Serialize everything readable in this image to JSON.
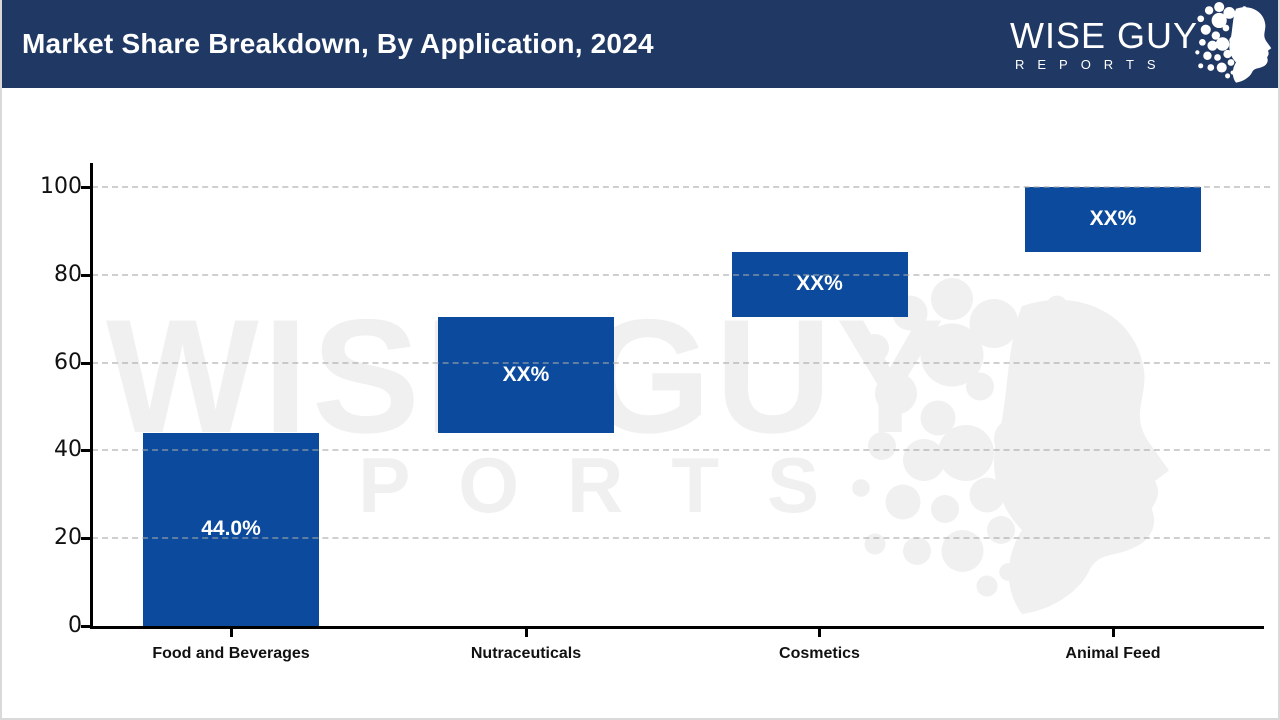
{
  "header": {
    "title": "Market Share Breakdown, By Application, 2024",
    "logo": {
      "name": "WISE GUY",
      "subtitle": "REPORTS"
    }
  },
  "watermark": {
    "line1": "WISE GUY",
    "line2": "REPORTS"
  },
  "colors": {
    "header_bg": "#203864",
    "bar": "#0b4a9c",
    "bar_label_text": "#ffffff",
    "axis": "#000000",
    "gridline": "#a7a7a7",
    "watermark": "#f0f0f0"
  },
  "chart_data": {
    "type": "bar",
    "subtype": "floating-waterfall",
    "title": "Market Share Breakdown, By Application, 2024",
    "categories": [
      "Food and Beverages",
      "Nutraceuticals",
      "Cosmetics",
      "Animal Feed"
    ],
    "segments": [
      {
        "category": "Food and Beverages",
        "start": 0,
        "end": 44.0,
        "value": 44.0,
        "label": "44.0%"
      },
      {
        "category": "Nutraceuticals",
        "start": 44.0,
        "end": 70.5,
        "value": 26.5,
        "label": "XX%"
      },
      {
        "category": "Cosmetics",
        "start": 70.5,
        "end": 85.2,
        "value": 14.7,
        "label": "XX%"
      },
      {
        "category": "Animal Feed",
        "start": 85.2,
        "end": 100.0,
        "value": 14.8,
        "label": "XX%"
      }
    ],
    "xlabel": "",
    "ylabel": "",
    "y_ticks": [
      0,
      20,
      40,
      60,
      80,
      100
    ],
    "ylim": [
      0,
      105
    ],
    "grid": "horizontal-dashed",
    "legend": "none"
  }
}
